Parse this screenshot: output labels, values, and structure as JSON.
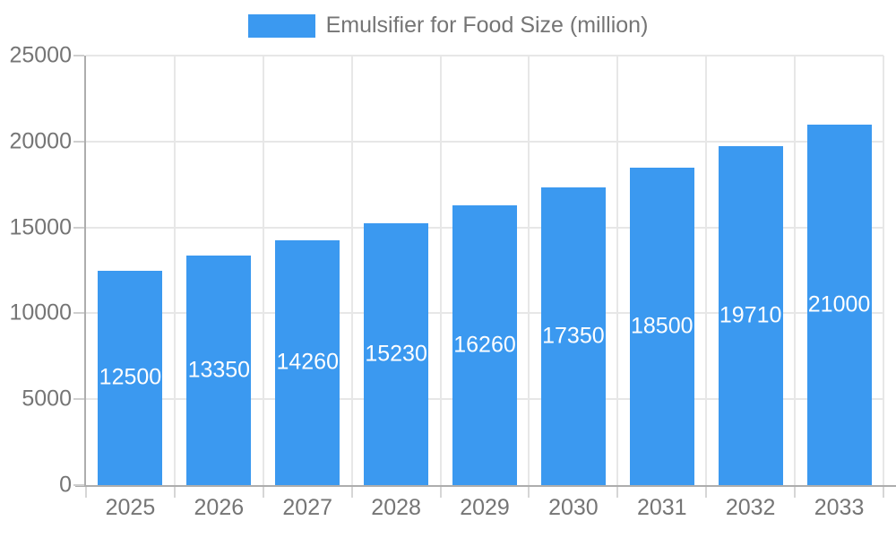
{
  "legend": {
    "label": "Emulsifier for Food Size (million)"
  },
  "chart_data": {
    "type": "bar",
    "title": "Emulsifier for Food Size (million)",
    "categories": [
      "2025",
      "2026",
      "2027",
      "2028",
      "2029",
      "2030",
      "2031",
      "2032",
      "2033"
    ],
    "values": [
      12500,
      13350,
      14260,
      15230,
      16260,
      17350,
      18500,
      19710,
      21000
    ],
    "xlabel": "",
    "ylabel": "",
    "ylim": [
      0,
      25000
    ],
    "yticks": [
      0,
      5000,
      10000,
      15000,
      20000,
      25000
    ],
    "grid": true,
    "legend_position": "top-center",
    "value_labels": "inside-center",
    "colors": {
      "bar": "#3b99f0",
      "value_label": "#ffffff",
      "axis_label": "#757575",
      "grid_line": "#e7e7e7",
      "axis_line": "#adadad"
    }
  }
}
